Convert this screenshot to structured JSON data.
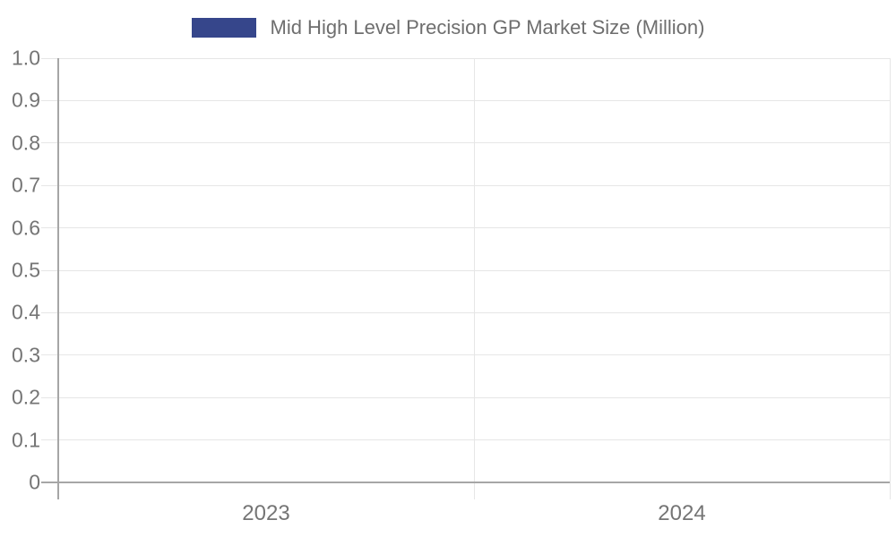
{
  "legend": {
    "label": "Mid High Level Precision GP Market Size (Million)",
    "swatch_color": "#36468B"
  },
  "chart_data": {
    "type": "bar",
    "title": "Mid High Level Precision GP Market Size (Million)",
    "categories": [
      "2023",
      "2024"
    ],
    "series": [
      {
        "name": "Mid High Level Precision GP Market Size (Million)",
        "values": [
          null,
          null
        ]
      }
    ],
    "xlabel": "",
    "ylabel": "",
    "ylim": [
      0,
      1
    ],
    "y_ticks": [
      "0",
      "0.1",
      "0.2",
      "0.3",
      "0.4",
      "0.5",
      "0.6",
      "0.7",
      "0.8",
      "0.9",
      "1.0"
    ],
    "grid": true,
    "legend_position": "top",
    "colors": {
      "series": "#36468B",
      "axis_text": "#757575",
      "grid_line": "#e6e6e6",
      "axis_line": "#a6a6a6",
      "legend_text": "#6e6e6e"
    }
  }
}
